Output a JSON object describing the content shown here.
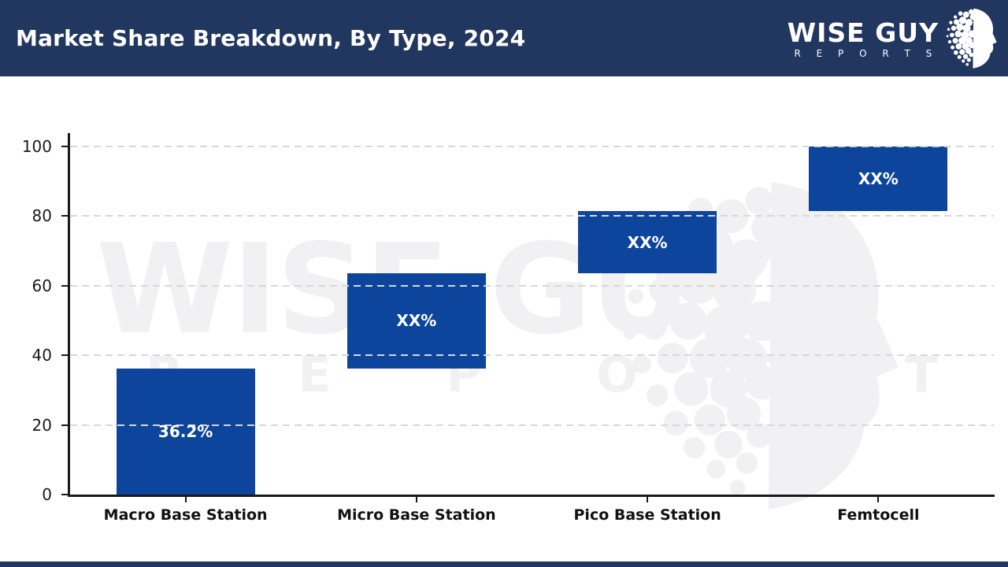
{
  "header": {
    "title": "Market Share Breakdown, By Type, 2024",
    "logo": {
      "line1": "WISE GUY",
      "line2": "R E P O R T S"
    }
  },
  "watermark": {
    "line1": "WISE GUY",
    "line2": "R E P O R T S"
  },
  "colors": {
    "header_bg": "#213760",
    "bar": "#0d459c",
    "grid": "#d8d8d8",
    "axis": "#1a1a1a",
    "bar_label": "#ffffff",
    "watermark": "#f1f1f4"
  },
  "chart_data": {
    "type": "bar",
    "subtype": "floating-waterfall",
    "title": "Market Share Breakdown, By Type, 2024",
    "categories": [
      "Macro Base Station",
      "Micro Base Station",
      "Pico Base Station",
      "Femtocell"
    ],
    "bars": [
      {
        "category": "Macro Base Station",
        "start": 0,
        "end": 36.2,
        "label": "36.2%"
      },
      {
        "category": "Micro Base Station",
        "start": 36.2,
        "end": 63.6,
        "label": "XX%"
      },
      {
        "category": "Pico Base Station",
        "start": 63.6,
        "end": 81.4,
        "label": "XX%"
      },
      {
        "category": "Femtocell",
        "start": 81.4,
        "end": 100,
        "label": "XX%"
      }
    ],
    "ylim": [
      0,
      100
    ],
    "yticks": [
      0,
      20,
      40,
      60,
      80,
      100
    ],
    "xlabel": "",
    "ylabel": "",
    "grid": "horizontal-dashed",
    "legend": null,
    "bar_color": "#0d459c",
    "bar_width_fraction": 0.6
  }
}
